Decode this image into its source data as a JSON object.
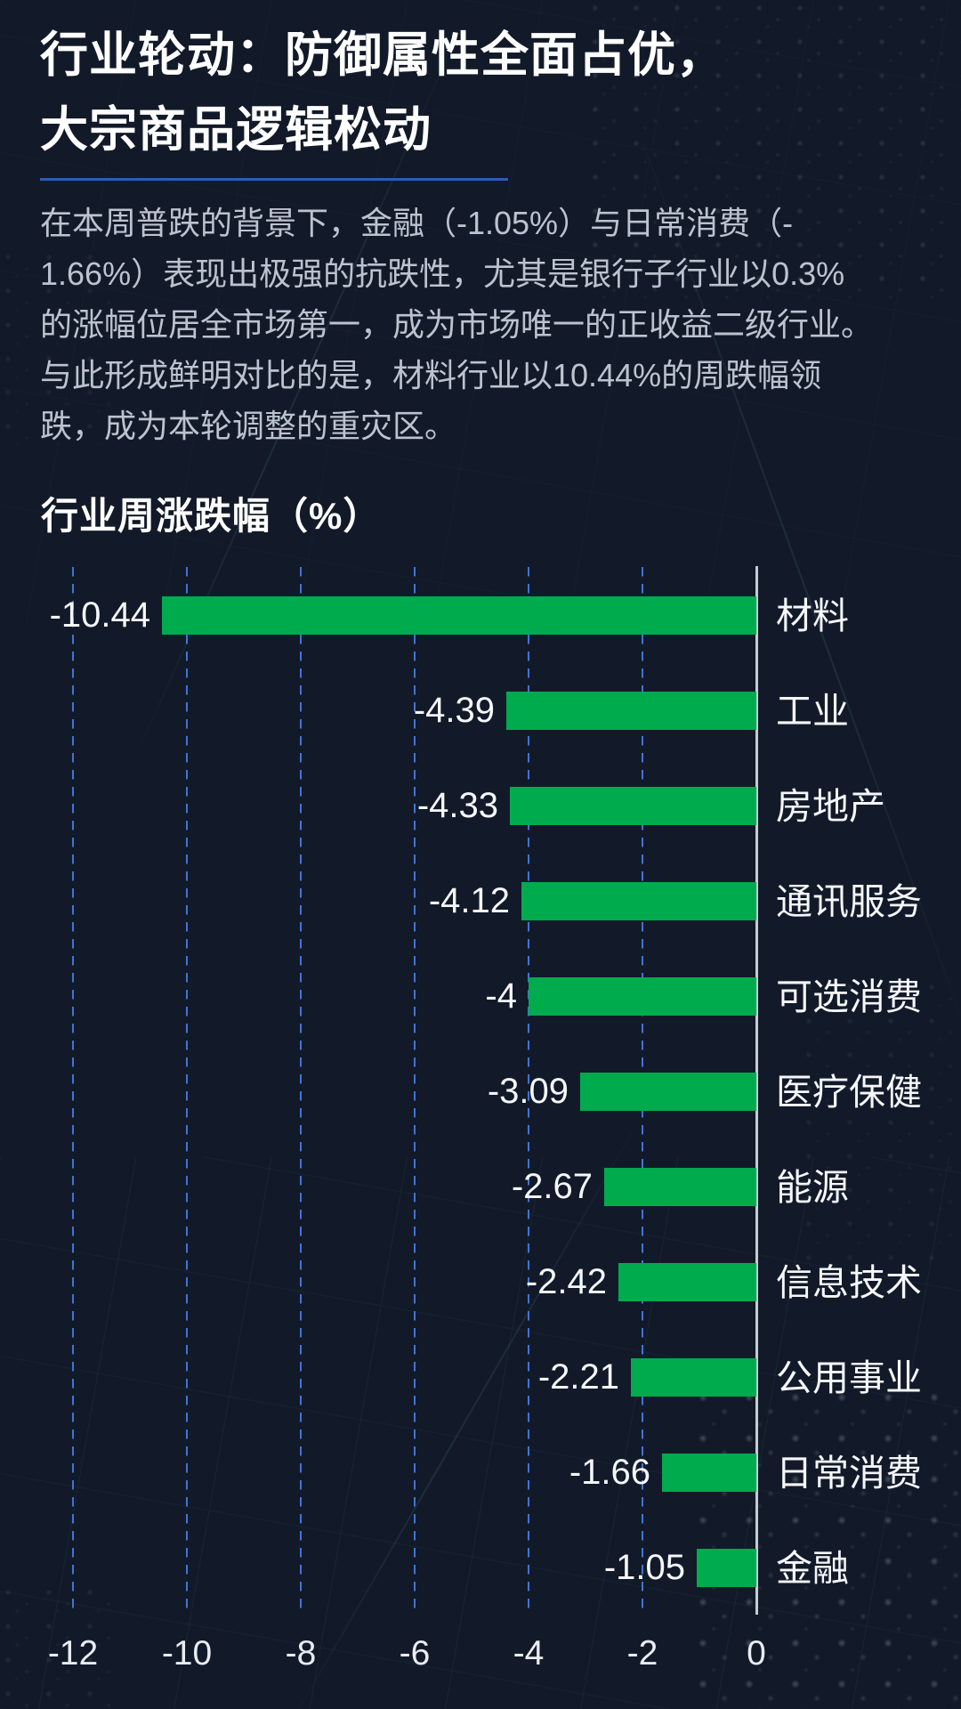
{
  "header": {
    "title_line1": "行业轮动：防御属性全面占优，",
    "title_line2": "大宗商品逻辑松动",
    "paragraph_lines": [
      "在本周普跌的背景下，金融（-1.05%）与日常消费（-",
      "1.66%）表现出极强的抗跌性，尤其是银行子行业以0.3%",
      "的涨幅位居全市场第一，成为市场唯一的正收益二级行业。",
      "与此形成鲜明对比的是，材料行业以10.44%的周跌幅领",
      "跌，成为本轮调整的重灾区。"
    ]
  },
  "chart_data": {
    "type": "bar",
    "orientation": "horizontal",
    "title": "行业周涨跌幅（%）",
    "categories": [
      "材料",
      "工业",
      "房地产",
      "通讯服务",
      "可选消费",
      "医疗保健",
      "能源",
      "信息技术",
      "公用事业",
      "日常消费",
      "金融"
    ],
    "values": [
      -10.44,
      -4.39,
      -4.33,
      -4.12,
      -4,
      -3.09,
      -2.67,
      -2.42,
      -2.21,
      -1.66,
      -1.05
    ],
    "value_labels": [
      "-10.44",
      "-4.39",
      "-4.33",
      "-4.12",
      "-4",
      "-3.09",
      "-2.67",
      "-2.42",
      "-2.21",
      "-1.66",
      "-1.05"
    ],
    "x_ticks": [
      -12,
      -10,
      -8,
      -6,
      -4,
      -2,
      0
    ],
    "xlim": [
      -12,
      0
    ],
    "grid": true,
    "legend": "none",
    "colors": {
      "bar": "#00ab4e",
      "grid": "#4273d2",
      "zero_line": "#c6ccd5",
      "background": "#121a29",
      "accent_underline": "#2d5cb7",
      "title_text": "#ffffff",
      "body_text": "#bcc3cf"
    }
  }
}
